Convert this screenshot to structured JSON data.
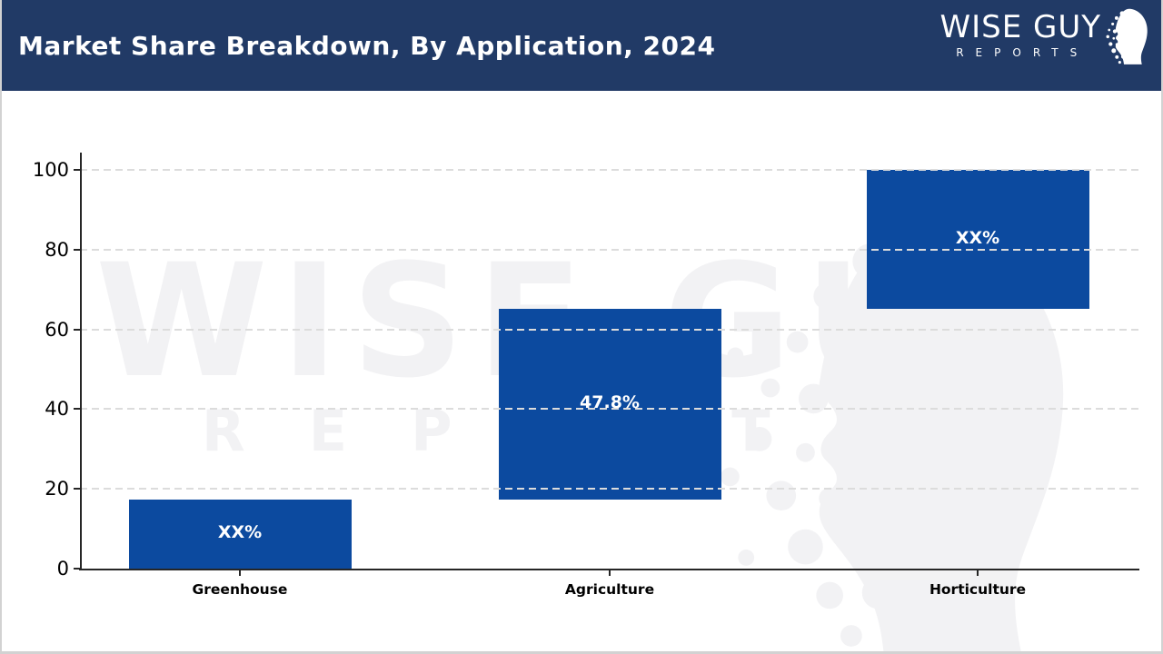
{
  "header": {
    "title": "Market Share Breakdown, By Application, 2024",
    "background_color": "#213a66",
    "logo": {
      "wordmark": "WISE GUY",
      "tagline": "REPORTS"
    }
  },
  "watermark": {
    "wordmark": "WISE GUY",
    "tagline": "REPORTS"
  },
  "chart_data": {
    "type": "bar",
    "subtype": "floating-segment-waterfall",
    "title": "Market Share Breakdown, By Application, 2024",
    "categories": [
      "Greenhouse",
      "Agriculture",
      "Horticulture"
    ],
    "bars": [
      {
        "category": "Greenhouse",
        "start": 0,
        "end": 17.3,
        "label": "XX%"
      },
      {
        "category": "Agriculture",
        "start": 17.3,
        "end": 65.1,
        "label": "47.8%"
      },
      {
        "category": "Horticulture",
        "start": 65.1,
        "end": 100,
        "label": "XX%"
      }
    ],
    "xlabel": "",
    "ylabel": "",
    "ylim": [
      0,
      100
    ],
    "yticks": [
      0,
      20,
      40,
      60,
      80,
      100
    ],
    "grid": "horizontal dashed gridlines drawn over bars",
    "legend": "none",
    "bar_color": "#0c4a9f",
    "axis_color": "#262626",
    "gridline_color": "#dcdcdc"
  }
}
